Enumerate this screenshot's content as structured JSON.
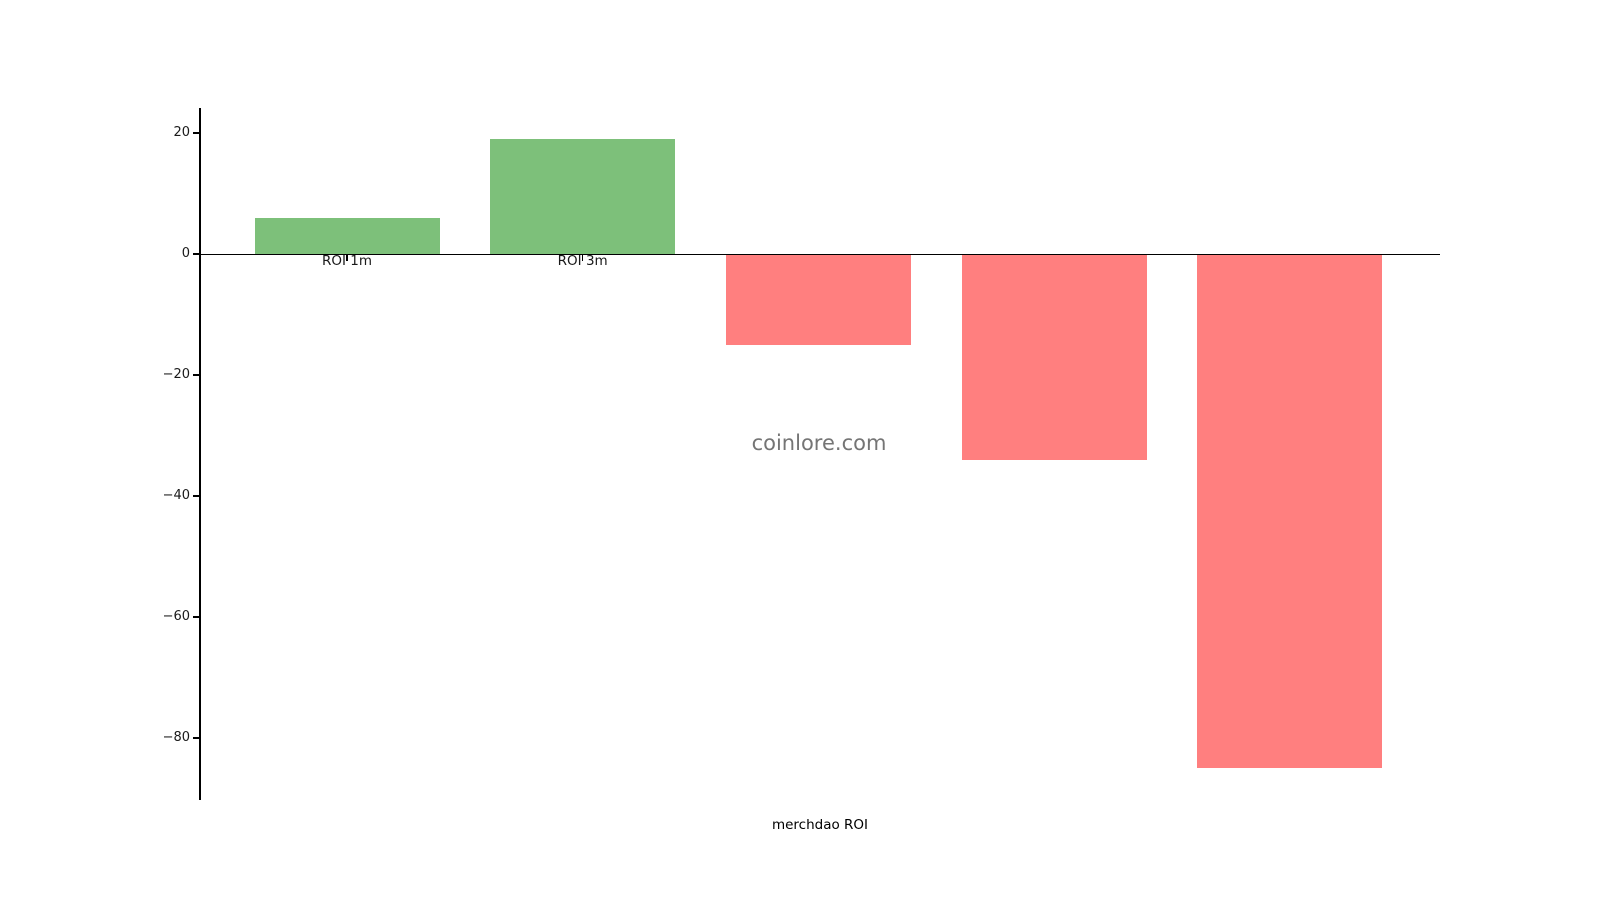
{
  "watermark": {
    "text": "coinlore.com",
    "color": "#757575"
  },
  "chart_data": {
    "type": "bar",
    "title": "",
    "xlabel": "merchdao ROI",
    "ylabel": "",
    "categories": [
      "ROI 1m",
      "ROI 3m",
      "",
      "",
      ""
    ],
    "values": [
      6,
      19,
      -15,
      -34,
      -85
    ],
    "bar_colors": [
      "#7dc07a",
      "#7dc07a",
      "#ff7f7f",
      "#ff7f7f",
      "#ff7f7f"
    ],
    "positive_color": "#7dc07a",
    "negative_color": "#ff7f7f",
    "y_ticks": [
      {
        "value": 20,
        "label": "20"
      },
      {
        "value": 0,
        "label": "0"
      },
      {
        "value": -20,
        "label": "−20"
      },
      {
        "value": -40,
        "label": "−40"
      },
      {
        "value": -60,
        "label": "−60"
      },
      {
        "value": -80,
        "label": "−80"
      }
    ],
    "ylim": [
      -90,
      24
    ],
    "grid": false,
    "legend": "none"
  }
}
